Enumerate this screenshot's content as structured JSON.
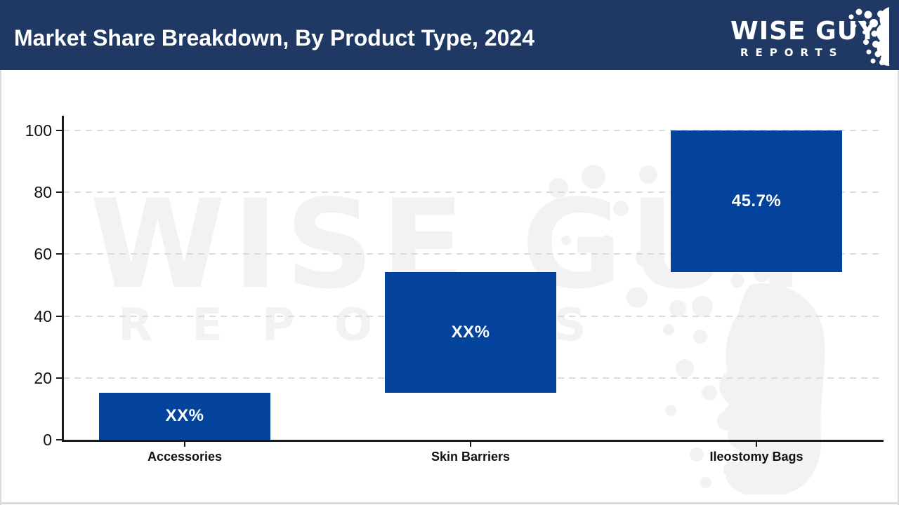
{
  "header": {
    "title": "Market Share Breakdown, By Product Type, 2024",
    "logo": {
      "line1": "WISE GUY",
      "line2": "REPORTS"
    }
  },
  "watermark": {
    "line1": "WISE GUY",
    "line2": "REPORTS"
  },
  "colors": {
    "header_bg": "#1f3864",
    "bar": "#04439c",
    "bar_label": "#ffffff",
    "axis": "#1a1a1a",
    "grid": "#dcdcdc",
    "watermark": "#f1f2f4",
    "page_border": "#d9d9d9"
  },
  "chart_data": {
    "type": "bar",
    "subtype": "waterfall",
    "title": "Market Share Breakdown, By Product Type, 2024",
    "categories": [
      "Accessories",
      "Skin Barriers",
      "Ileostomy Bags"
    ],
    "segments": [
      {
        "name": "Accessories",
        "start": 0,
        "end": 15.2,
        "label": "XX%"
      },
      {
        "name": "Skin Barriers",
        "start": 15.2,
        "end": 54.3,
        "label": "XX%"
      },
      {
        "name": "Ileostomy Bags",
        "start": 54.3,
        "end": 100,
        "label": "45.7%"
      }
    ],
    "xlabel": "",
    "ylabel": "",
    "ylim": [
      0,
      104.8
    ],
    "yticks": [
      0,
      20,
      40,
      60,
      80,
      100
    ],
    "grid": "dashed-horizontal",
    "legend": "none",
    "bar_color": "#04439c"
  }
}
